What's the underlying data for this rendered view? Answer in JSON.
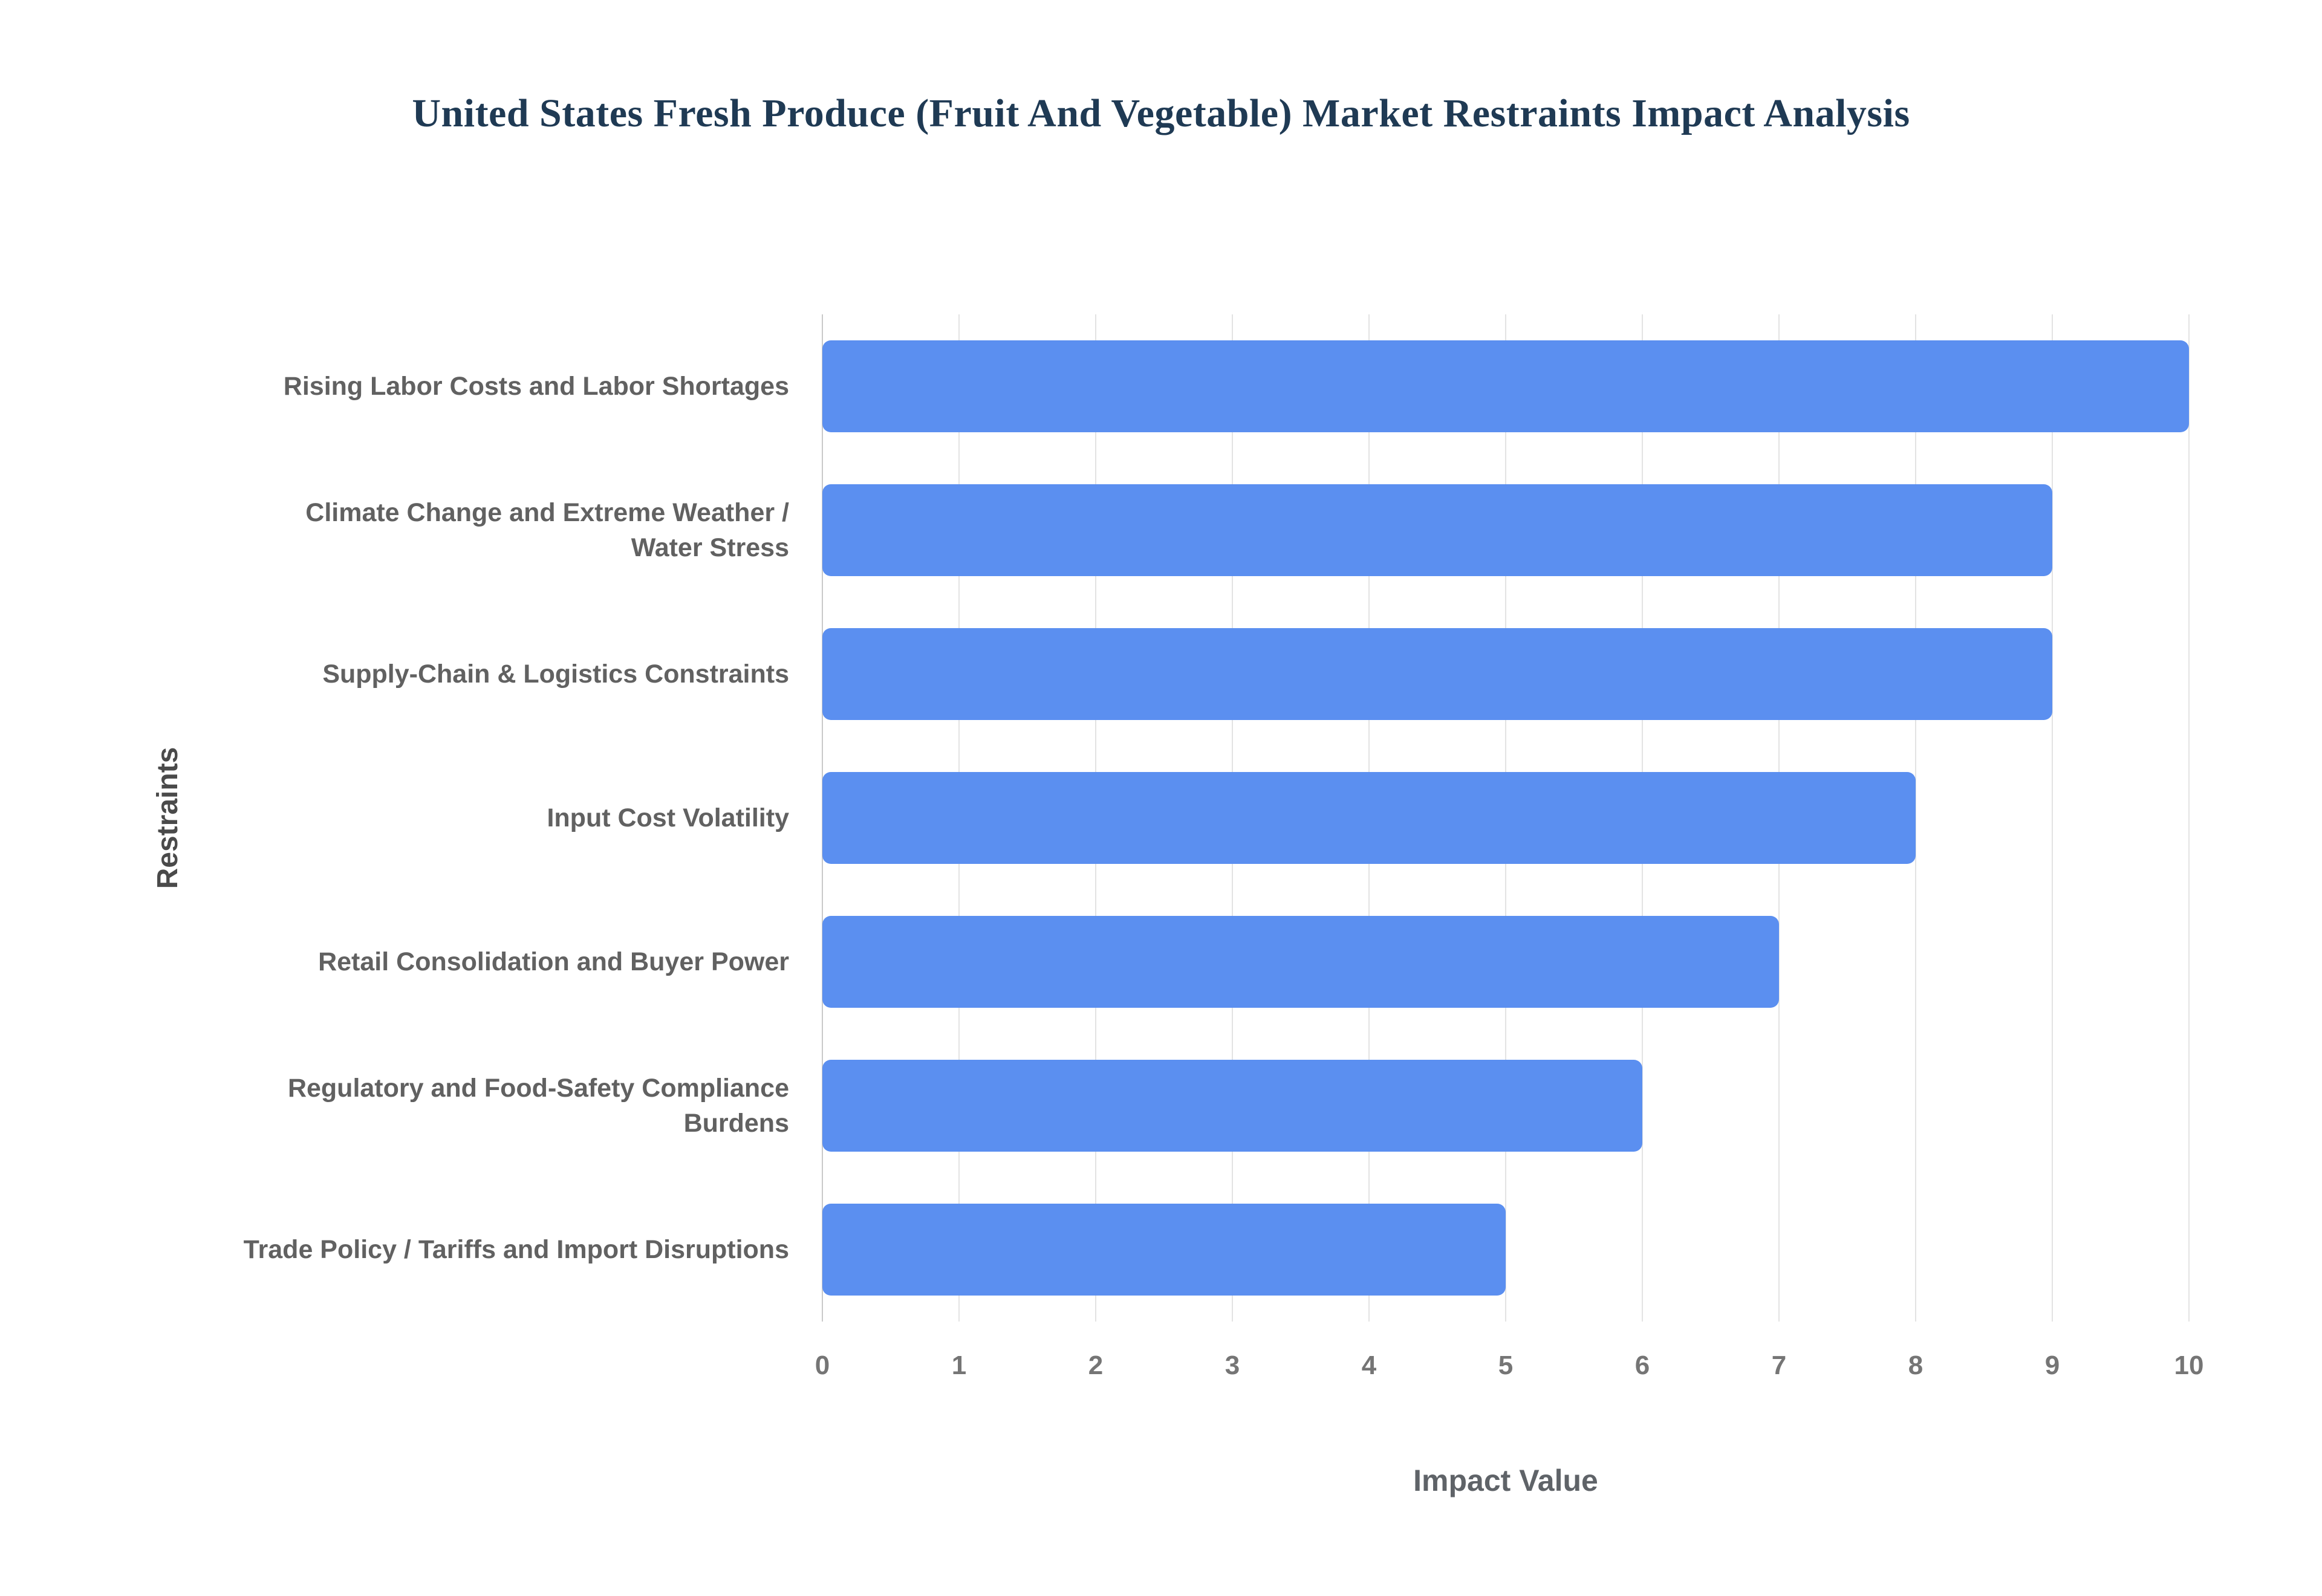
{
  "chart_data": {
    "type": "bar",
    "orientation": "horizontal",
    "title": "United States Fresh Produce (Fruit And Vegetable) Market Restraints Impact Analysis",
    "categories": [
      "Rising Labor Costs and Labor Shortages",
      "Climate Change and Extreme Weather / Water Stress",
      "Supply-Chain & Logistics Constraints",
      "Input Cost Volatility",
      "Retail Consolidation and Buyer Power",
      "Regulatory and Food-Safety Compliance Burdens",
      "Trade Policy / Tariffs and Import Disruptions"
    ],
    "values": [
      10,
      9,
      9,
      8,
      7,
      6,
      5
    ],
    "xlabel": "Impact Value",
    "ylabel": "Restraints",
    "xlim": [
      0,
      10
    ],
    "xticks": [
      0,
      1,
      2,
      3,
      4,
      5,
      6,
      7,
      8,
      9,
      10
    ],
    "bar_color": "#5b8ff0",
    "grid": true,
    "legend": false,
    "background_color": "#ffffff"
  }
}
